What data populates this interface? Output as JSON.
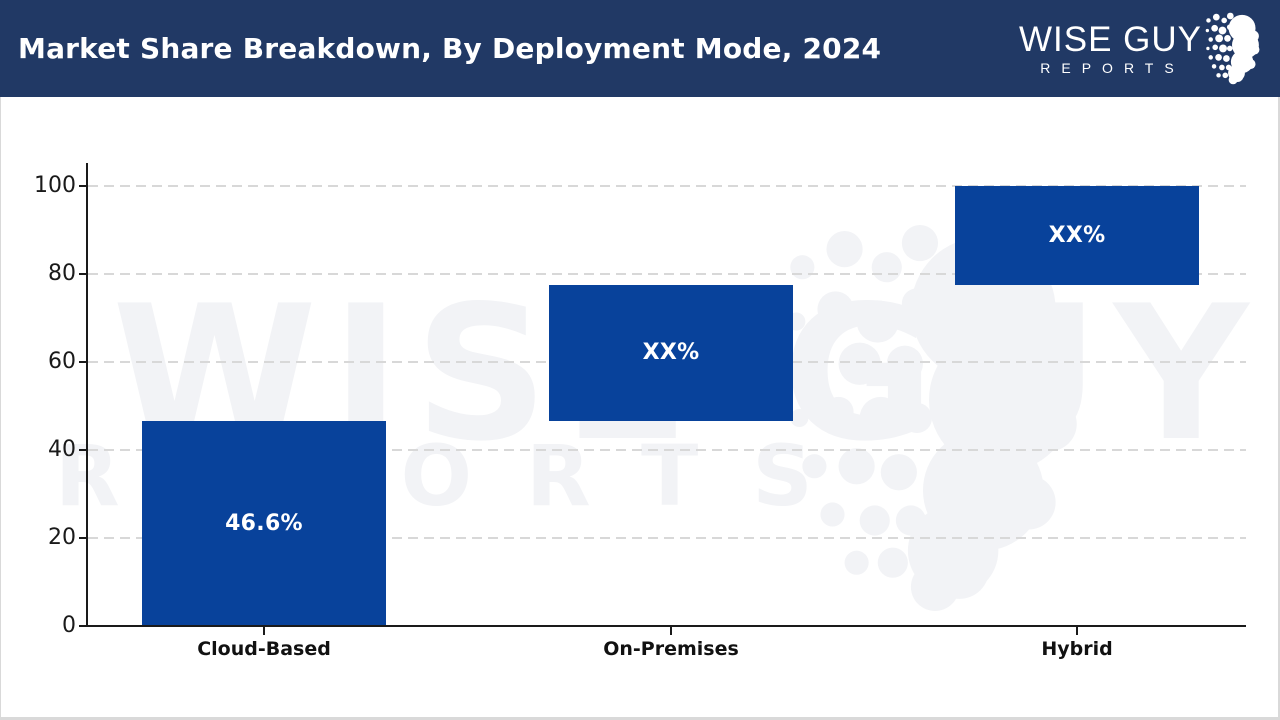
{
  "header": {
    "title": "Market Share Breakdown, By Deployment Mode, 2024",
    "logo": {
      "line1": "WISE GUY",
      "line2": "REPORTS"
    }
  },
  "watermark": {
    "row1": "WISE GUY",
    "row2": "REPORTS"
  },
  "colors": {
    "header_bg": "#213965",
    "bar": "#08429b",
    "grid_line": "#d8d8d8",
    "axis": "#1a1a1a",
    "value_label": "#ffffff",
    "watermark": "#f2f3f6",
    "page_border": "#d9d9d9"
  },
  "chart_data": {
    "type": "bar",
    "subtype": "floating-stacked-percentage (waterfall-style segments)",
    "title": "Market Share Breakdown, By Deployment Mode, 2024",
    "categories": [
      "Cloud-Based",
      "On-Premises",
      "Hybrid"
    ],
    "segments": [
      {
        "category": "Cloud-Based",
        "start": 0,
        "end": 46.6,
        "label": "46.6%"
      },
      {
        "category": "On-Premises",
        "start": 46.6,
        "end": 77.5,
        "label": "XX%"
      },
      {
        "category": "Hybrid",
        "start": 77.5,
        "end": 100,
        "label": "XX%"
      }
    ],
    "xlabel": "",
    "ylabel": "",
    "yticks": [
      0,
      20,
      40,
      60,
      80,
      100
    ],
    "ylim": [
      0,
      105
    ],
    "grid": "horizontal dashed",
    "legend": "none"
  }
}
